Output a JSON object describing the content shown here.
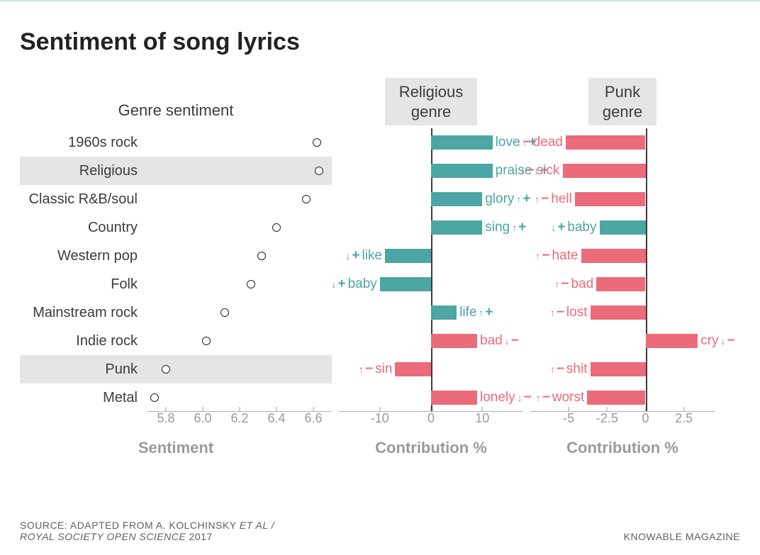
{
  "title": "Sentiment of song lyrics",
  "colors": {
    "positive": "#4ca6a3",
    "negative": "#ec6b7a",
    "highlight_bg": "#e5e5e5",
    "axis_text": "#9a9a9a",
    "text": "#3c3c3c",
    "top_rule": "#c8e3df"
  },
  "dot_chart": {
    "title": "Genre sentiment",
    "x_label": "Sentiment",
    "x_min": 5.7,
    "x_max": 6.7,
    "x_ticks": [
      5.8,
      6.0,
      6.2,
      6.4,
      6.6
    ],
    "genres": [
      {
        "label": "1960s rock",
        "value": 6.62,
        "highlight": false
      },
      {
        "label": "Religious",
        "value": 6.63,
        "highlight": true
      },
      {
        "label": "Classic R&B/soul",
        "value": 6.56,
        "highlight": false
      },
      {
        "label": "Country",
        "value": 6.4,
        "highlight": false
      },
      {
        "label": "Western pop",
        "value": 6.32,
        "highlight": false
      },
      {
        "label": "Folk",
        "value": 6.26,
        "highlight": false
      },
      {
        "label": "Mainstream rock",
        "value": 6.12,
        "highlight": false
      },
      {
        "label": "Indie rock",
        "value": 6.02,
        "highlight": false
      },
      {
        "label": "Punk",
        "value": 5.8,
        "highlight": true
      },
      {
        "label": "Metal",
        "value": 5.74,
        "highlight": false
      }
    ]
  },
  "bar_charts": [
    {
      "title": "Religious\ngenre",
      "x_label": "Contribution %",
      "x_min": -18,
      "x_max": 18,
      "x_ticks": [
        -10,
        0,
        10
      ],
      "words": [
        {
          "word": "love",
          "value": 12,
          "freq": "up",
          "valence": "pos"
        },
        {
          "word": "praise",
          "value": 12,
          "freq": "up",
          "valence": "pos"
        },
        {
          "word": "glory",
          "value": 10,
          "freq": "up",
          "valence": "pos"
        },
        {
          "word": "sing",
          "value": 10,
          "freq": "up",
          "valence": "pos"
        },
        {
          "word": "like",
          "value": -9,
          "freq": "down",
          "valence": "pos"
        },
        {
          "word": "baby",
          "value": -10,
          "freq": "down",
          "valence": "pos"
        },
        {
          "word": "life",
          "value": 5,
          "freq": "up",
          "valence": "pos"
        },
        {
          "word": "bad",
          "value": 9,
          "freq": "down",
          "valence": "neg"
        },
        {
          "word": "sin",
          "value": -7,
          "freq": "up",
          "valence": "neg"
        },
        {
          "word": "lonely",
          "value": 9,
          "freq": "down",
          "valence": "neg"
        }
      ]
    },
    {
      "title": "Punk\ngenre",
      "x_label": "Contribution %",
      "x_min": -7.5,
      "x_max": 4.5,
      "x_ticks": [
        -5.0,
        -2.5,
        0,
        2.5
      ],
      "words": [
        {
          "word": "dead",
          "value": -5.2,
          "freq": "up",
          "valence": "neg"
        },
        {
          "word": "sick",
          "value": -5.4,
          "freq": "up",
          "valence": "neg"
        },
        {
          "word": "hell",
          "value": -4.6,
          "freq": "up",
          "valence": "neg"
        },
        {
          "word": "baby",
          "value": -3.0,
          "freq": "down",
          "valence": "pos"
        },
        {
          "word": "hate",
          "value": -4.2,
          "freq": "up",
          "valence": "neg"
        },
        {
          "word": "bad",
          "value": -3.2,
          "freq": "up",
          "valence": "neg"
        },
        {
          "word": "lost",
          "value": -3.6,
          "freq": "up",
          "valence": "neg"
        },
        {
          "word": "cry",
          "value": 3.4,
          "freq": "down",
          "valence": "neg"
        },
        {
          "word": "shit",
          "value": -3.6,
          "freq": "up",
          "valence": "neg"
        },
        {
          "word": "worst",
          "value": -3.8,
          "freq": "up",
          "valence": "neg"
        }
      ]
    }
  ],
  "footer": {
    "source_pre": "SOURCE: ADAPTED FROM A. KOLCHINSKY ",
    "source_italic": "ET AL / ROYAL SOCIETY OPEN SCIENCE",
    "source_post": " 2017",
    "credit": "KNOWABLE MAGAZINE"
  }
}
